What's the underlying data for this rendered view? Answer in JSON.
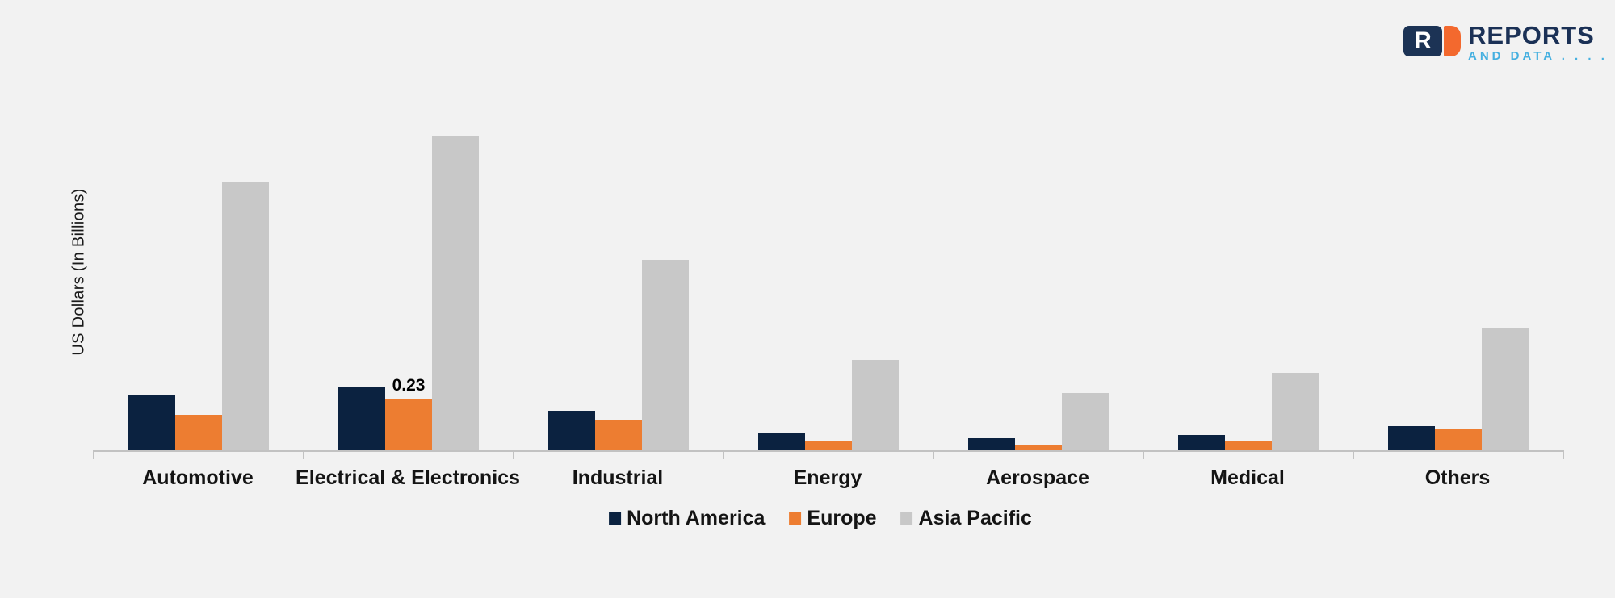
{
  "background_color": "#f2f2f2",
  "text_color": "#141414",
  "axis_color": "#c2c2c2",
  "logo": {
    "mark_letter": "R",
    "line1": "REPORTS",
    "line2": "AND DATA . . . .",
    "mark_navy": "#1c3355",
    "mark_orange": "#f3692e",
    "text_navy": "#1b3156",
    "text_blue": "#45b0e0"
  },
  "chart_data": {
    "type": "bar",
    "title": "",
    "xlabel": "",
    "ylabel": "US Dollars (In Billions)",
    "units": "US Dollars (In Billions)",
    "grid": false,
    "legend_position": "bottom",
    "ylim": [
      0,
      1.5
    ],
    "categories": [
      "Automotive",
      "Electrical & Electronics",
      "Industrial",
      "Energy",
      "Aerospace",
      "Medical",
      "Others"
    ],
    "series": [
      {
        "name": "North America",
        "color": "#0b2240",
        "values": [
          0.25,
          0.29,
          0.18,
          0.08,
          0.055,
          0.07,
          0.11
        ]
      },
      {
        "name": "Europe",
        "color": "#ed7d31",
        "values": [
          0.16,
          0.23,
          0.14,
          0.045,
          0.025,
          0.04,
          0.095
        ]
      },
      {
        "name": "Asia Pacific",
        "color": "#c8c8c8",
        "values": [
          1.21,
          1.42,
          0.86,
          0.41,
          0.26,
          0.35,
          0.55
        ]
      }
    ],
    "annotations": [
      {
        "series": "Europe",
        "category": "Electrical & Electronics",
        "text": "0.23"
      }
    ]
  }
}
